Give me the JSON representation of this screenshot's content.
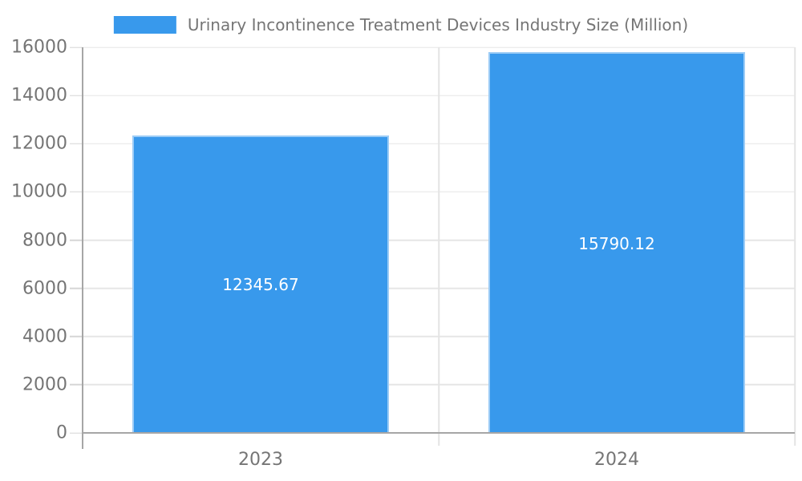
{
  "chart_data": {
    "type": "bar",
    "title": "Urinary Incontinence Treatment Devices Industry Size (Million)",
    "categories": [
      "2023",
      "2024"
    ],
    "values": [
      12345.67,
      15790.12
    ],
    "value_labels": [
      "12345.67",
      "15790.12"
    ],
    "xlabel": "",
    "ylabel": "",
    "ylim": [
      0,
      16000
    ],
    "yticks": [
      0,
      2000,
      4000,
      6000,
      8000,
      10000,
      12000,
      14000,
      16000
    ],
    "grid": true,
    "legend_position": "top-center"
  },
  "legend": {
    "label": "Urinary Incontinence Treatment Devices Industry Size (Million)"
  },
  "colors": {
    "bar": "#3899ec",
    "bar_edge": "rgba(255,255,255,0.5)",
    "bar_value_text": "#ffffff",
    "gridline": "#e6e6e6",
    "tick": "#d6d6d6",
    "divider": "#e4e4e4",
    "axis_line": "#a6a6a6",
    "baseline": "#a6a6a6",
    "axis_text": "#757575"
  }
}
